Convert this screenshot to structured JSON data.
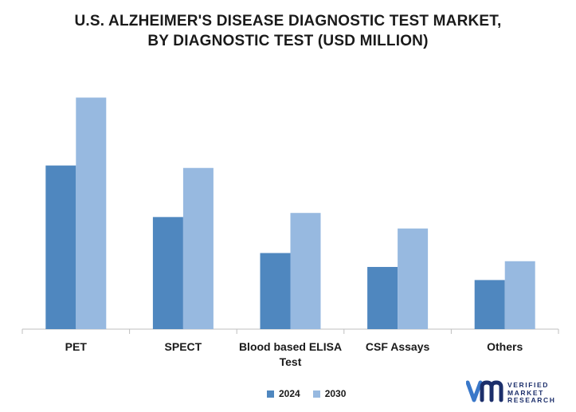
{
  "title": {
    "line1": "U.S. ALZHEIMER'S DISEASE DIAGNOSTIC TEST MARKET,",
    "line2": "BY DIAGNOSTIC TEST (USD MILLION)"
  },
  "chart_data": {
    "type": "bar",
    "title": "U.S. ALZHEIMER'S DISEASE DIAGNOSTIC TEST MARKET, BY DIAGNOSTIC TEST (USD MILLION)",
    "categories": [
      "PET",
      "SPECT",
      "Blood based ELISA Test",
      "CSF Assays",
      "Others"
    ],
    "category_label_lines": [
      [
        "PET"
      ],
      [
        "SPECT"
      ],
      [
        "Blood based ELISA",
        "Test"
      ],
      [
        "CSF Assays"
      ],
      [
        "Others"
      ]
    ],
    "series": [
      {
        "name": "2024",
        "color": "#4f87bf",
        "values": [
          200,
          137,
          93,
          76,
          60
        ]
      },
      {
        "name": "2030",
        "color": "#97b9e0",
        "values": [
          283,
          197,
          142,
          123,
          83
        ]
      }
    ],
    "ylim": [
      0,
      300
    ],
    "xlabel": "",
    "ylabel": "",
    "grid": false,
    "legend_position": "bottom-center"
  },
  "legend": {
    "items": [
      "2024",
      "2030"
    ]
  },
  "logo": {
    "line1": "VERIFIED",
    "line2": "MARKET",
    "line3": "RESEARCH",
    "brand_color": "#1c2f6b",
    "accent_color": "#3a78c9"
  }
}
